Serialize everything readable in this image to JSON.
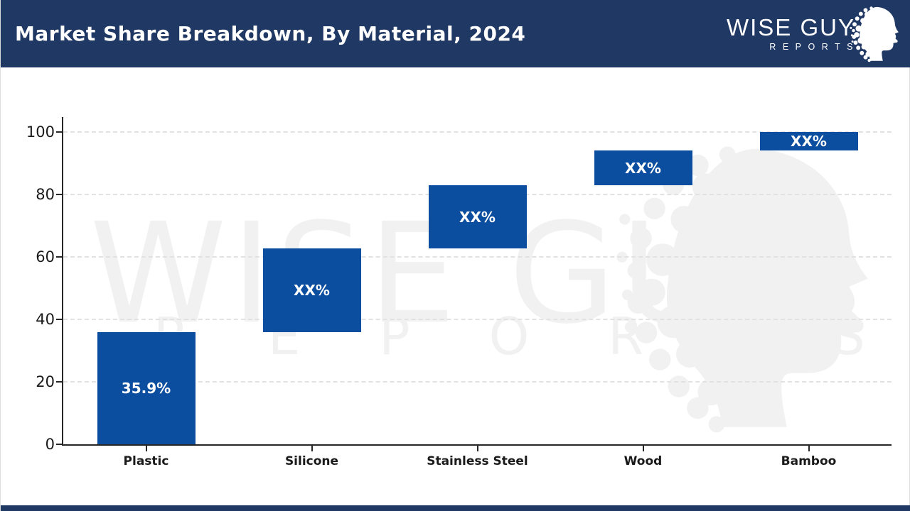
{
  "header": {
    "title": "Market Share Breakdown, By Material, 2024",
    "logo": {
      "line1": "WISE GUY",
      "line2": "REPORTS"
    }
  },
  "watermark": {
    "line1": "WISE GUY",
    "line2": "R E P O R T S"
  },
  "colors": {
    "header_bg": "#203864",
    "footer_bg": "#203864",
    "bar": "#0b4d9e",
    "bar_label": "#ffffff",
    "axis": "#262626",
    "grid": "#e2e2e2",
    "tick_label": "#1a1a1a",
    "watermark": "#f1f1f1"
  },
  "chart_data": {
    "type": "bar",
    "subtype": "waterfall",
    "title": "Market Share Breakdown, By Material, 2024",
    "categories": [
      "Plastic",
      "Silicone",
      "Stainless Steel",
      "Wood",
      "Bamboo"
    ],
    "series": [
      {
        "name": "Plastic",
        "start": 0,
        "end": 35.9,
        "value": 35.9,
        "label": "35.9%"
      },
      {
        "name": "Silicone",
        "start": 35.9,
        "end": 62.7,
        "value": 26.8,
        "label": "XX%"
      },
      {
        "name": "Stainless Steel",
        "start": 62.7,
        "end": 82.9,
        "value": 20.2,
        "label": "XX%"
      },
      {
        "name": "Wood",
        "start": 82.9,
        "end": 94.0,
        "value": 11.1,
        "label": "XX%"
      },
      {
        "name": "Bamboo",
        "start": 94.0,
        "end": 100.0,
        "value": 6.0,
        "label": "XX%"
      }
    ],
    "yticks": [
      0,
      20,
      40,
      60,
      80,
      100
    ],
    "ylim": [
      0,
      105
    ],
    "xlabel": "",
    "ylabel": "",
    "grid": "horizontal-dashed",
    "legend": "none"
  }
}
